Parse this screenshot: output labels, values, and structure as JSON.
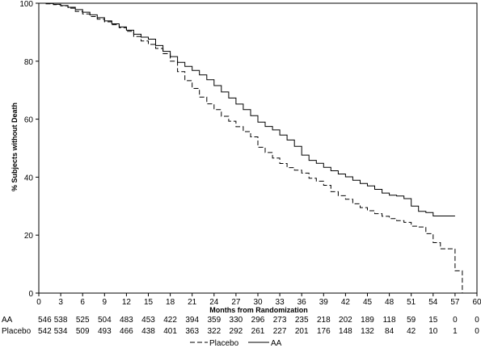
{
  "chart_data": {
    "type": "line",
    "title": "",
    "xlabel": "Months from Randomization",
    "ylabel": "% Subjects without Death",
    "xlim": [
      0,
      60
    ],
    "ylim": [
      0,
      100
    ],
    "x_ticks": [
      0,
      3,
      6,
      9,
      12,
      15,
      18,
      21,
      24,
      27,
      30,
      33,
      36,
      39,
      42,
      45,
      48,
      51,
      54,
      57,
      60
    ],
    "y_ticks": [
      0,
      20,
      40,
      60,
      80,
      100
    ],
    "grid": false,
    "legend_position": "bottom-center",
    "series": [
      {
        "name": "AA",
        "style": "solid",
        "x": [
          0,
          1,
          2,
          3,
          4,
          5,
          6,
          7,
          8,
          9,
          10,
          11,
          12,
          13,
          14,
          15,
          16,
          17,
          18,
          19,
          20,
          21,
          22,
          23,
          24,
          25,
          26,
          27,
          28,
          29,
          30,
          31,
          32,
          33,
          34,
          35,
          36,
          37,
          38,
          39,
          40,
          41,
          42,
          43,
          44,
          45,
          46,
          47,
          48,
          49,
          50,
          51,
          52,
          53,
          54,
          55,
          56,
          57
        ],
        "y": [
          100,
          99.9,
          99.6,
          99.2,
          98.6,
          97.8,
          96.9,
          96.0,
          95.0,
          93.9,
          92.9,
          91.8,
          90.7,
          89.3,
          88.3,
          87.6,
          85.4,
          83.4,
          81.6,
          79.6,
          78.2,
          76.8,
          75.3,
          73.6,
          71.6,
          69.4,
          67.3,
          65.2,
          63.3,
          61.2,
          59.0,
          57.5,
          56.3,
          54.5,
          52.8,
          50.6,
          47.6,
          45.8,
          44.8,
          43.4,
          42.2,
          41.1,
          40.1,
          38.9,
          37.8,
          37.0,
          35.8,
          34.5,
          33.8,
          33.5,
          32.6,
          30.0,
          28.2,
          27.8,
          26.6,
          26.6,
          26.6,
          26.6
        ]
      },
      {
        "name": "Placebo",
        "style": "dashed",
        "x": [
          0,
          1,
          2,
          3,
          4,
          5,
          6,
          7,
          8,
          9,
          10,
          11,
          12,
          13,
          14,
          15,
          16,
          17,
          18,
          19,
          20,
          21,
          22,
          23,
          24,
          25,
          26,
          27,
          28,
          29,
          30,
          31,
          32,
          33,
          34,
          35,
          36,
          37,
          38,
          39,
          40,
          41,
          42,
          43,
          44,
          45,
          46,
          47,
          48,
          49,
          50,
          51,
          52,
          53,
          54,
          55,
          56,
          57,
          58
        ],
        "y": [
          100,
          99.8,
          99.5,
          99.1,
          98.3,
          97.2,
          96.3,
          95.4,
          94.5,
          93.6,
          92.6,
          91.6,
          90.3,
          88.5,
          87.0,
          85.8,
          84.4,
          82.6,
          80.0,
          76.4,
          73.3,
          70.6,
          67.6,
          65.3,
          63.3,
          61.0,
          59.3,
          57.4,
          55.7,
          53.9,
          50.3,
          48.5,
          46.6,
          44.7,
          43.3,
          42.4,
          41.4,
          39.6,
          38.6,
          37.2,
          35.0,
          33.6,
          32.4,
          30.8,
          29.5,
          28.4,
          27.4,
          26.5,
          25.7,
          25.0,
          24.4,
          23.1,
          22.8,
          20.5,
          17.4,
          15.3,
          15.3,
          7.7,
          0
        ]
      }
    ],
    "risk_table": {
      "rows": [
        {
          "label": "AA",
          "counts": [
            "546",
            "538",
            "525",
            "504",
            "483",
            "453",
            "422",
            "394",
            "359",
            "330",
            "296",
            "273",
            "235",
            "218",
            "202",
            "189",
            "118",
            "59",
            "15",
            "0",
            "0"
          ]
        },
        {
          "label": "Placebo",
          "counts": [
            "542",
            "534",
            "509",
            "493",
            "466",
            "438",
            "401",
            "363",
            "322",
            "292",
            "261",
            "227",
            "201",
            "176",
            "148",
            "132",
            "84",
            "42",
            "10",
            "1",
            "0"
          ]
        }
      ]
    }
  }
}
